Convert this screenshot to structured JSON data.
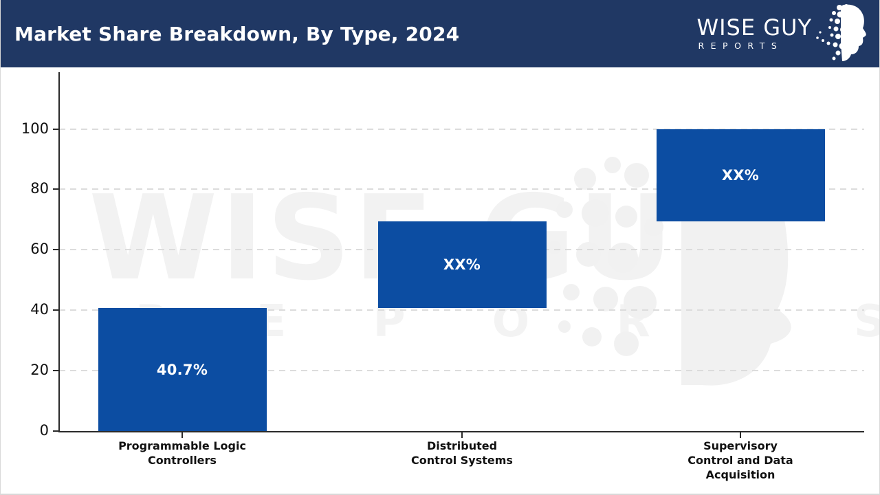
{
  "header": {
    "title": "Market Share Breakdown, By Type, 2024",
    "bg_color": "#203864",
    "logo": {
      "line1": "WISE GUY",
      "line2": "REPORTS",
      "icon": "dotted-face-profile"
    }
  },
  "watermark": {
    "line1": "WISE GUY",
    "line2": "R E P O R T S"
  },
  "chart_data": {
    "type": "bar",
    "subtype": "waterfall",
    "title": "Market Share Breakdown, By Type, 2024",
    "categories": [
      "Programmable Logic\nControllers",
      "Distributed\nControl Systems",
      "Supervisory\nControl and Data\nAcquisition"
    ],
    "bar_labels": [
      "40.7%",
      "XX%",
      "XX%"
    ],
    "bar_ranges": [
      [
        0,
        40.7
      ],
      [
        40.7,
        69.5
      ],
      [
        69.5,
        100
      ]
    ],
    "values": [
      40.7,
      28.8,
      30.5
    ],
    "xlabel": "",
    "ylabel": "",
    "ylim": [
      0,
      100
    ],
    "yticks": [
      0,
      20,
      40,
      60,
      80,
      100
    ],
    "grid": "horizontal-dashed",
    "legend": "none",
    "bar_color": "#0c4da2",
    "bar_label_color": "#ffffff"
  }
}
